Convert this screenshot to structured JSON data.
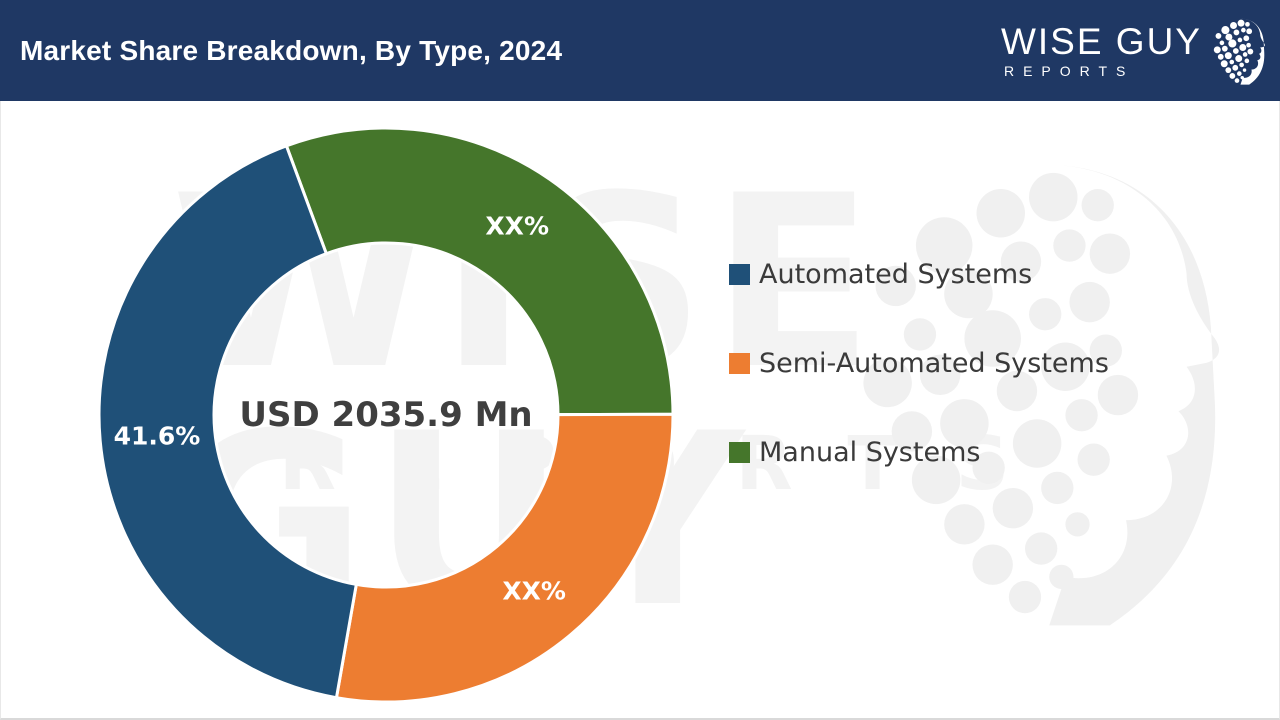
{
  "header": {
    "title": "Market Share Breakdown, By Type, 2024",
    "logo": {
      "wordmark": "WISE GUY",
      "subtext": "REPORTS"
    }
  },
  "watermark": {
    "wordmark": "WISE GUY",
    "subtext": "REPORTS"
  },
  "chart_data": {
    "type": "pie",
    "donut": true,
    "title": "Market Share Breakdown, By Type, 2024",
    "center_label": "USD 2035.9 Mn",
    "start_angle_deg": -20.3,
    "slices": [
      {
        "label": "Manual Systems",
        "display_value": "XX%",
        "percent_est": 30.6,
        "color": "#45762b"
      },
      {
        "label": "Semi-Automated Systems",
        "display_value": "XX%",
        "percent_est": 27.8,
        "color": "#ed7d31"
      },
      {
        "label": "Automated Systems",
        "display_value": "41.6%",
        "percent_est": 41.6,
        "color": "#1f5078"
      }
    ],
    "legend": [
      {
        "label": "Automated Systems",
        "color": "#1f5078"
      },
      {
        "label": "Semi-Automated Systems",
        "color": "#ed7d31"
      },
      {
        "label": "Manual Systems",
        "color": "#45762b"
      }
    ],
    "legend_position": "right"
  },
  "colors": {
    "header_bg": "#1f3864",
    "background": "#ffffff",
    "text_dark": "#3a3a3a",
    "watermark": "#f3f3f3"
  }
}
